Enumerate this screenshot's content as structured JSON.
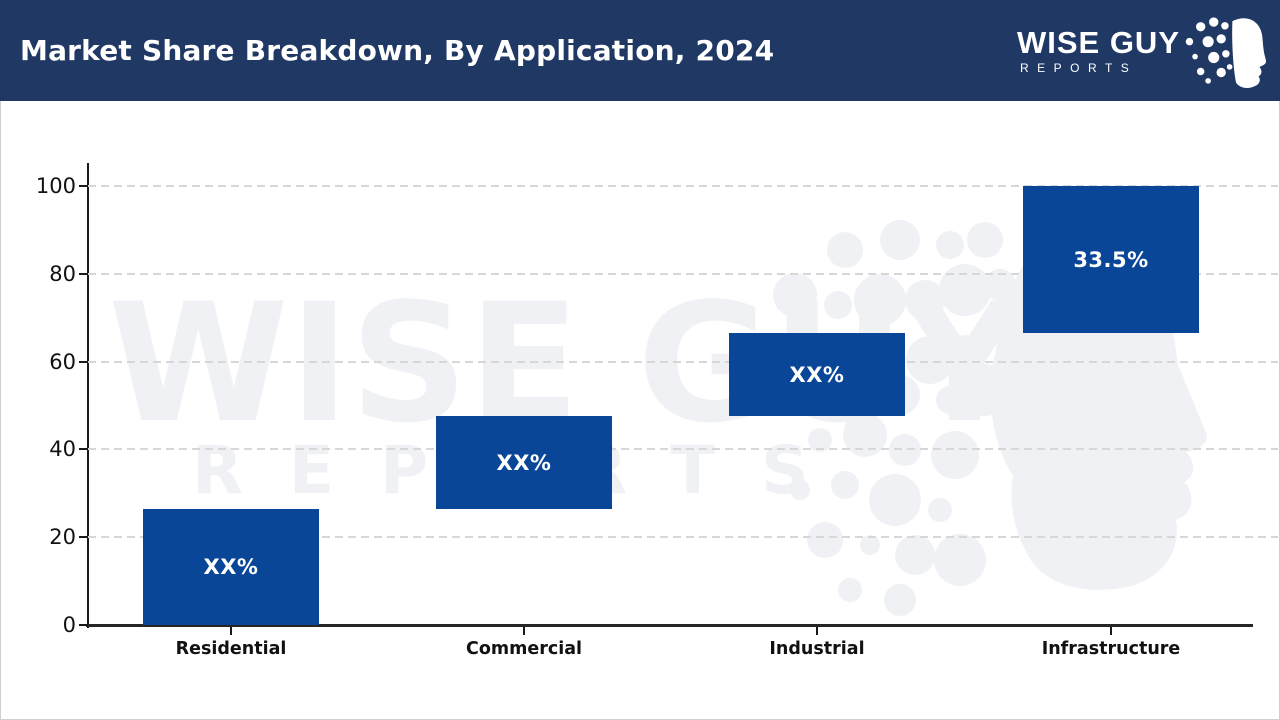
{
  "header": {
    "title": "Market Share Breakdown, By Application, 2024",
    "logo": {
      "line1": "WISE GUY",
      "line2": "REPORTS"
    }
  },
  "watermark": {
    "line1": "WISE GUY",
    "line2": "REPORTS"
  },
  "chart_data": {
    "type": "bar",
    "subtype": "waterfall-floating-bars",
    "title": "Market Share Breakdown, By Application, 2024",
    "xlabel": "",
    "ylabel": "",
    "categories": [
      "Residential",
      "Commercial",
      "Industrial",
      "Infrastructure"
    ],
    "segments": [
      {
        "category": "Residential",
        "start": 0,
        "end": 26.5,
        "label": "XX%"
      },
      {
        "category": "Commercial",
        "start": 26.5,
        "end": 47.5,
        "label": "XX%"
      },
      {
        "category": "Industrial",
        "start": 47.5,
        "end": 66.5,
        "label": "XX%"
      },
      {
        "category": "Infrastructure",
        "start": 66.5,
        "end": 100,
        "label": "33.5%"
      }
    ],
    "yticks": [
      0,
      20,
      40,
      60,
      80,
      100
    ],
    "ylim": [
      0,
      105
    ],
    "grid": "horizontal-dashed",
    "legend": "none",
    "bar_color": "#0a4697"
  },
  "colors": {
    "header_bg": "#203864",
    "bar": "#0a4697",
    "grid": "#d7d7d7",
    "axis": "#1a1a1a",
    "watermark": "#f0f1f4"
  }
}
